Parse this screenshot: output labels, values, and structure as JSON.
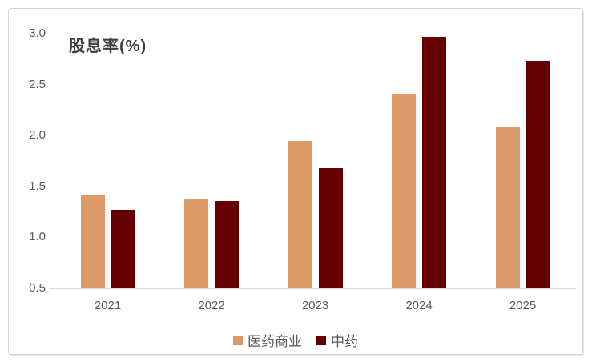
{
  "chart_data": {
    "type": "bar",
    "title": "股息率(%)",
    "categories": [
      "2021",
      "2022",
      "2023",
      "2024",
      "2025"
    ],
    "series": [
      {
        "name": "医药商业",
        "color": "#DC9A68",
        "values": [
          1.41,
          1.38,
          1.95,
          2.41,
          2.08
        ]
      },
      {
        "name": "中药",
        "color": "#650000",
        "values": [
          1.27,
          1.36,
          1.68,
          2.97,
          2.73
        ]
      }
    ],
    "ylim": [
      0.5,
      3.0
    ],
    "yticks": [
      "3.0",
      "2.5",
      "2.0",
      "1.5",
      "1.0",
      "0.5"
    ],
    "ytick_values": [
      3.0,
      2.5,
      2.0,
      1.5,
      1.0,
      0.5
    ],
    "xlabel": "",
    "ylabel": "",
    "grid": false,
    "legend_position": "bottom"
  },
  "colors": {
    "axis_line": "#d9d9d9",
    "tick_label": "#595959",
    "title_text": "#3d3d3d",
    "frame_border": "#d3d3d3",
    "background": "#ffffff"
  }
}
